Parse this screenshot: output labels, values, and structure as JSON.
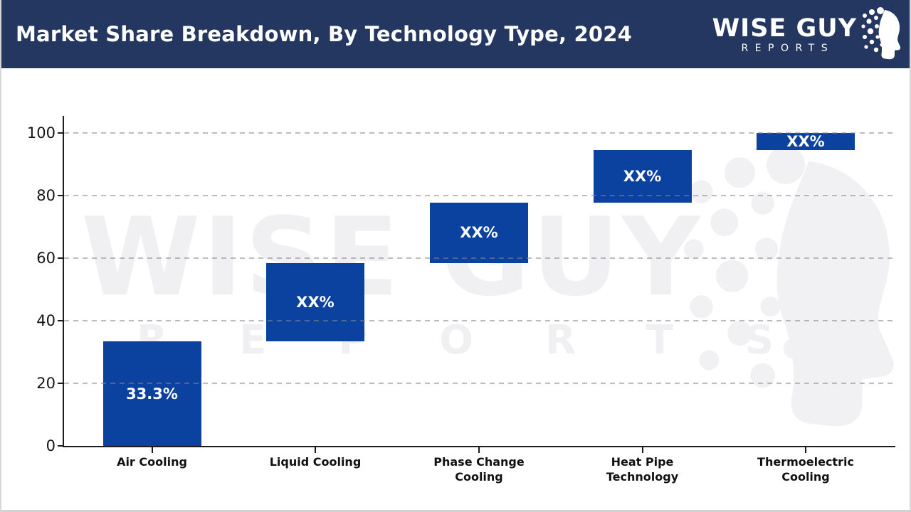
{
  "header": {
    "title": "Market Share Breakdown, By Technology Type, 2024",
    "bg_color": "#233760",
    "logo": {
      "wordmark": "WISE GUY",
      "subtext": "REPORTS",
      "icon": "dotted-head-profile"
    }
  },
  "watermark": {
    "line1": "WISE GUY",
    "line2": "REPORTS"
  },
  "chart_data": {
    "type": "bar",
    "variant": "waterfall",
    "title": "Market Share Breakdown, By Technology Type, 2024",
    "categories": [
      "Air Cooling",
      "Liquid Cooling",
      "Phase Change Cooling",
      "Heat Pipe Technology",
      "Thermoelectric Cooling"
    ],
    "category_lines": [
      [
        "Air Cooling"
      ],
      [
        "Liquid Cooling"
      ],
      [
        "Phase Change",
        "Cooling"
      ],
      [
        "Heat Pipe",
        "Technology"
      ],
      [
        "Thermoelectric",
        "Cooling"
      ]
    ],
    "segments": [
      {
        "category": "Air Cooling",
        "start": 0,
        "end": 33.3,
        "label": "33.3%"
      },
      {
        "category": "Liquid Cooling",
        "start": 33.3,
        "end": 58.5,
        "label": "XX%"
      },
      {
        "category": "Phase Change Cooling",
        "start": 58.5,
        "end": 77.8,
        "label": "XX%"
      },
      {
        "category": "Heat Pipe Technology",
        "start": 77.8,
        "end": 94.5,
        "label": "XX%"
      },
      {
        "category": "Thermoelectric Cooling",
        "start": 94.5,
        "end": 100,
        "label": "XX%"
      }
    ],
    "ylim": [
      0,
      100
    ],
    "yticks": [
      0,
      20,
      40,
      60,
      80,
      100
    ],
    "xlabel": "",
    "ylabel": "",
    "grid": "horizontal-dashed",
    "grid_over_bars": true,
    "legend": "none",
    "bar_color": "#0b429f",
    "bar_label_color": "#ffffff",
    "axis_color": "#1c1c1c"
  }
}
